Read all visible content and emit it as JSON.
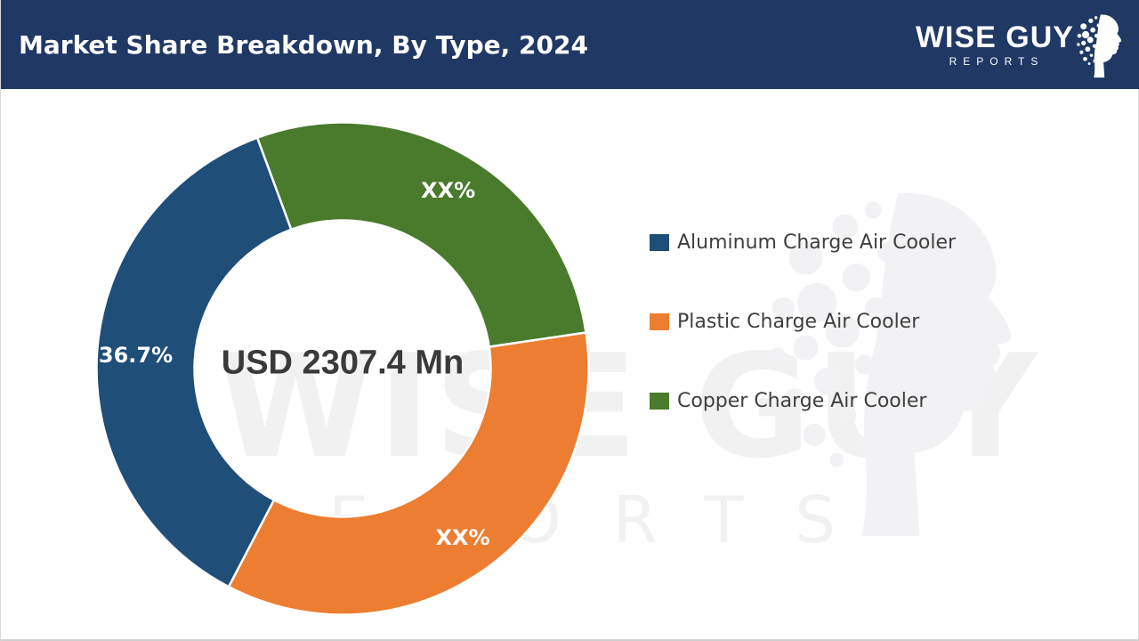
{
  "header": {
    "title": "Market Share Breakdown, By Type, 2024",
    "logo": {
      "line1": "WISE GUY",
      "line2": "REPORTS"
    }
  },
  "watermark": {
    "line1": "WISE GUY",
    "line2": "REPORTS"
  },
  "chart_data": {
    "type": "pie",
    "donut": true,
    "title": "Market Share Breakdown, By Type, 2024",
    "center_text": "USD 2307.4 Mn",
    "legend_position": "right",
    "start_angle_deg": -20.3,
    "series": [
      {
        "name": "Aluminum Charge Air Cooler",
        "value": 36.7,
        "label": "36.7%",
        "color": "#1f4e79"
      },
      {
        "name": "Plastic Charge Air Cooler",
        "value": 35.0,
        "label": "XX%",
        "color": "#ed7d31"
      },
      {
        "name": "Copper Charge Air Cooler",
        "value": 28.3,
        "label": "XX%",
        "color": "#4a7a2b"
      }
    ]
  }
}
